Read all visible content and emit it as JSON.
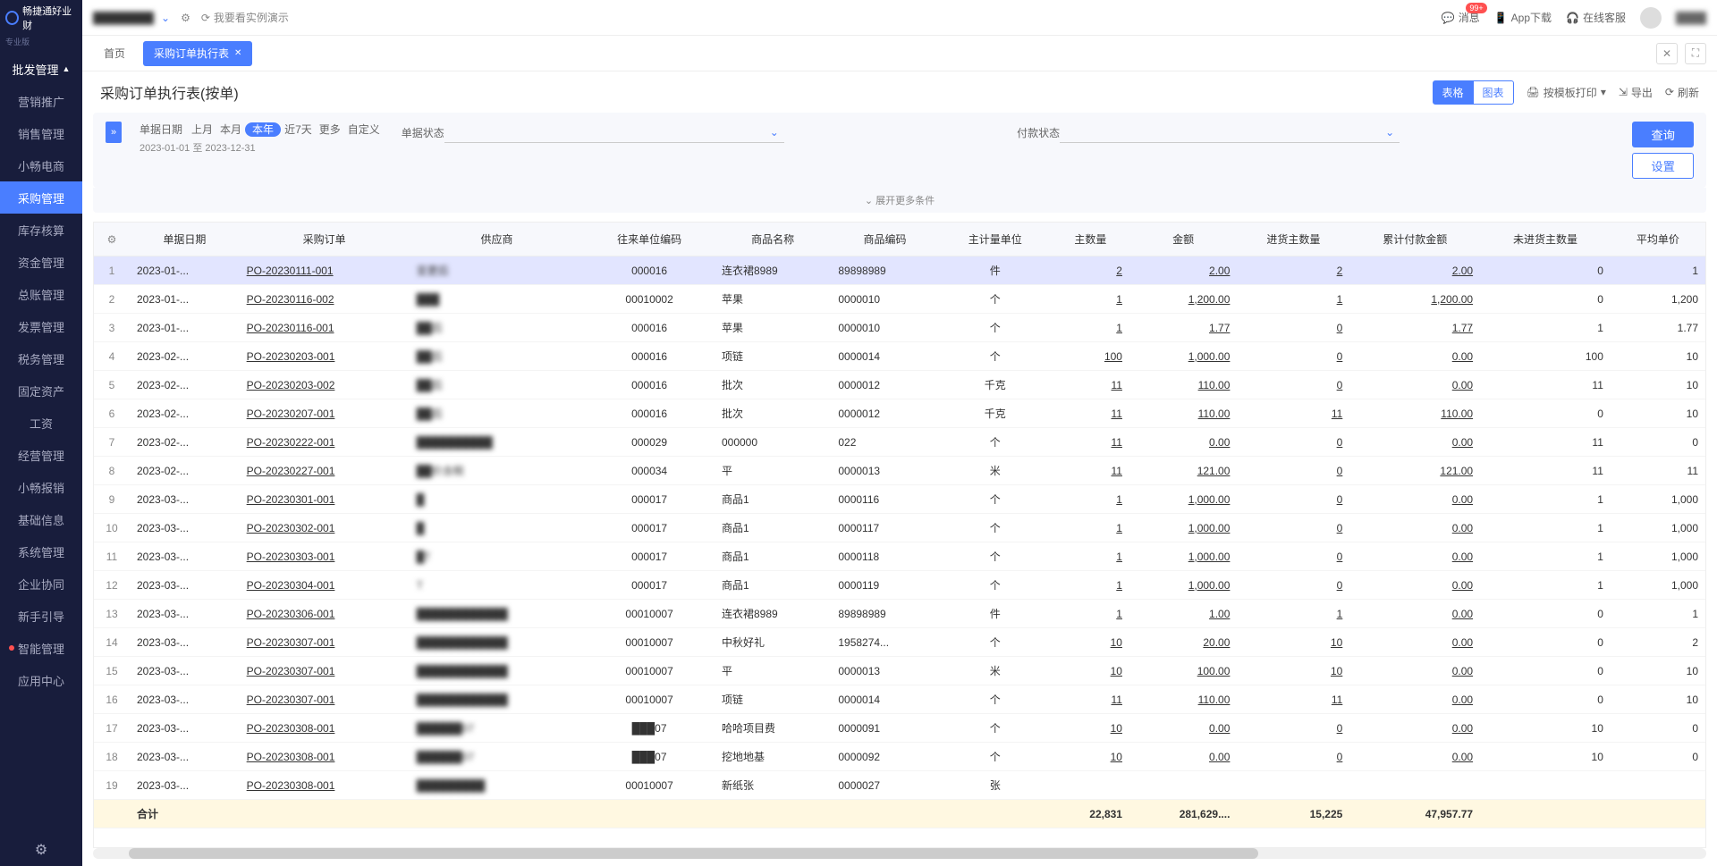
{
  "brand": {
    "name": "畅捷通好业财",
    "edition": "专业版"
  },
  "sidebar": [
    {
      "label": "批发管理",
      "expanded": true
    },
    {
      "label": "营销推广"
    },
    {
      "label": "销售管理"
    },
    {
      "label": "小畅电商"
    },
    {
      "label": "采购管理",
      "active": true
    },
    {
      "label": "库存核算"
    },
    {
      "label": "资金管理"
    },
    {
      "label": "总账管理"
    },
    {
      "label": "发票管理"
    },
    {
      "label": "税务管理"
    },
    {
      "label": "固定资产"
    },
    {
      "label": "工资"
    },
    {
      "label": "经营管理"
    },
    {
      "label": "小畅报销"
    },
    {
      "label": "基础信息"
    },
    {
      "label": "系统管理"
    },
    {
      "label": "企业协同"
    },
    {
      "label": "新手引导"
    },
    {
      "label": "智能管理",
      "dot": true
    },
    {
      "label": "应用中心"
    }
  ],
  "topbar": {
    "org": "████████",
    "demo": "我要看实例演示",
    "msg": "消息",
    "badge": "99+",
    "app": "App下载",
    "cs": "在线客服",
    "user": "████"
  },
  "tabs": [
    {
      "label": "首页"
    },
    {
      "label": "采购订单执行表",
      "active": true,
      "closable": true
    }
  ],
  "page": {
    "title": "采购订单执行表(按单)",
    "view": {
      "table": "表格",
      "chart": "图表"
    },
    "actions": {
      "print": "按模板打印",
      "export": "导出",
      "refresh": "刷新"
    }
  },
  "filters": {
    "dateLabel": "单据日期",
    "dateOpts": [
      "上月",
      "本月",
      "本年",
      "近7天",
      "更多",
      "自定义"
    ],
    "dateActive": "本年",
    "dateRange": "2023-01-01 至 2023-12-31",
    "statusLabel": "单据状态",
    "payLabel": "付款状态",
    "query": "查询",
    "setup": "设置",
    "expand": "展开更多条件"
  },
  "columns": [
    "",
    "单据日期",
    "采购订单",
    "供应商",
    "往来单位编码",
    "商品名称",
    "商品编码",
    "主计量单位",
    "主数量",
    "金额",
    "进货主数量",
    "累计付款金额",
    "未进货主数量",
    "平均单价"
  ],
  "rows": [
    {
      "i": 1,
      "date": "2023-01-...",
      "po": "PO-20230111-001",
      "sup": "变更后",
      "code": "000016",
      "pname": "连衣裙8989",
      "pcode": "89898989",
      "unit": "件",
      "qty": "2",
      "amt": "2.00",
      "inqty": "2",
      "paid": "2.00",
      "unqty": "0",
      "avg": "1",
      "sel": true
    },
    {
      "i": 2,
      "date": "2023-01-...",
      "po": "PO-20230116-002",
      "sup": "███",
      "code": "00010002",
      "pname": "苹果",
      "pcode": "0000010",
      "unit": "个",
      "qty": "1",
      "amt": "1,200.00",
      "inqty": "1",
      "paid": "1,200.00",
      "unqty": "0",
      "avg": "1,200"
    },
    {
      "i": 3,
      "date": "2023-01-...",
      "po": "PO-20230116-001",
      "sup": "██后",
      "code": "000016",
      "pname": "苹果",
      "pcode": "0000010",
      "unit": "个",
      "qty": "1",
      "amt": "1.77",
      "inqty": "0",
      "paid": "1.77",
      "unqty": "1",
      "avg": "1.77"
    },
    {
      "i": 4,
      "date": "2023-02-...",
      "po": "PO-20230203-001",
      "sup": "██后",
      "code": "000016",
      "pname": "项链",
      "pcode": "0000014",
      "unit": "个",
      "qty": "100",
      "amt": "1,000.00",
      "inqty": "0",
      "paid": "0.00",
      "unqty": "100",
      "avg": "10"
    },
    {
      "i": 5,
      "date": "2023-02-...",
      "po": "PO-20230203-002",
      "sup": "██后",
      "code": "000016",
      "pname": "批次",
      "pcode": "0000012",
      "unit": "千克",
      "qty": "11",
      "amt": "110.00",
      "inqty": "0",
      "paid": "0.00",
      "unqty": "11",
      "avg": "10"
    },
    {
      "i": 6,
      "date": "2023-02-...",
      "po": "PO-20230207-001",
      "sup": "██后",
      "code": "000016",
      "pname": "批次",
      "pcode": "0000012",
      "unit": "千克",
      "qty": "11",
      "amt": "110.00",
      "inqty": "11",
      "paid": "110.00",
      "unqty": "0",
      "avg": "10"
    },
    {
      "i": 7,
      "date": "2023-02-...",
      "po": "PO-20230222-001",
      "sup": "██████████",
      "code": "000029",
      "pname": "000000",
      "pcode": "022",
      "unit": "个",
      "qty": "11",
      "amt": "0.00",
      "inqty": "0",
      "paid": "0.00",
      "unqty": "11",
      "avg": "0"
    },
    {
      "i": 8,
      "date": "2023-02-...",
      "po": "PO-20230227-001",
      "sup": "██价含税",
      "code": "000034",
      "pname": "平",
      "pcode": "0000013",
      "unit": "米",
      "qty": "11",
      "amt": "121.00",
      "inqty": "0",
      "paid": "121.00",
      "unqty": "11",
      "avg": "11"
    },
    {
      "i": 9,
      "date": "2023-03-...",
      "po": "PO-20230301-001",
      "sup": "█",
      "code": "000017",
      "pname": "商品1",
      "pcode": "0000116",
      "unit": "个",
      "qty": "1",
      "amt": "1,000.00",
      "inqty": "0",
      "paid": "0.00",
      "unqty": "1",
      "avg": "1,000"
    },
    {
      "i": 10,
      "date": "2023-03-...",
      "po": "PO-20230302-001",
      "sup": "█",
      "code": "000017",
      "pname": "商品1",
      "pcode": "0000117",
      "unit": "个",
      "qty": "1",
      "amt": "1,000.00",
      "inqty": "0",
      "paid": "0.00",
      "unqty": "1",
      "avg": "1,000"
    },
    {
      "i": 11,
      "date": "2023-03-...",
      "po": "PO-20230303-001",
      "sup": "█T",
      "code": "000017",
      "pname": "商品1",
      "pcode": "0000118",
      "unit": "个",
      "qty": "1",
      "amt": "1,000.00",
      "inqty": "0",
      "paid": "0.00",
      "unqty": "1",
      "avg": "1,000"
    },
    {
      "i": 12,
      "date": "2023-03-...",
      "po": "PO-20230304-001",
      "sup": "T",
      "code": "000017",
      "pname": "商品1",
      "pcode": "0000119",
      "unit": "个",
      "qty": "1",
      "amt": "1,000.00",
      "inqty": "0",
      "paid": "0.00",
      "unqty": "1",
      "avg": "1,000"
    },
    {
      "i": 13,
      "date": "2023-03-...",
      "po": "PO-20230306-001",
      "sup": "████████████",
      "code": "00010007",
      "pname": "连衣裙8989",
      "pcode": "89898989",
      "unit": "件",
      "qty": "1",
      "amt": "1.00",
      "inqty": "1",
      "paid": "0.00",
      "unqty": "0",
      "avg": "1"
    },
    {
      "i": 14,
      "date": "2023-03-...",
      "po": "PO-20230307-001",
      "sup": "████████████",
      "code": "00010007",
      "pname": "中秋好礼",
      "pcode": "1958274...",
      "unit": "个",
      "qty": "10",
      "amt": "20.00",
      "inqty": "10",
      "paid": "0.00",
      "unqty": "0",
      "avg": "2"
    },
    {
      "i": 15,
      "date": "2023-03-...",
      "po": "PO-20230307-001",
      "sup": "████████████",
      "code": "00010007",
      "pname": "平",
      "pcode": "0000013",
      "unit": "米",
      "qty": "10",
      "amt": "100.00",
      "inqty": "10",
      "paid": "0.00",
      "unqty": "0",
      "avg": "10"
    },
    {
      "i": 16,
      "date": "2023-03-...",
      "po": "PO-20230307-001",
      "sup": "████████████",
      "code": "00010007",
      "pname": "项链",
      "pcode": "0000014",
      "unit": "个",
      "qty": "11",
      "amt": "110.00",
      "inqty": "11",
      "paid": "0.00",
      "unqty": "0",
      "avg": "10"
    },
    {
      "i": 17,
      "date": "2023-03-...",
      "po": "PO-20230308-001",
      "sup": "██████07",
      "code": "███07",
      "pname": "哈哈项目费",
      "pcode": "0000091",
      "unit": "个",
      "qty": "10",
      "amt": "0.00",
      "inqty": "0",
      "paid": "0.00",
      "unqty": "10",
      "avg": "0"
    },
    {
      "i": 18,
      "date": "2023-03-...",
      "po": "PO-20230308-001",
      "sup": "██████07",
      "code": "███07",
      "pname": "挖地地基",
      "pcode": "0000092",
      "unit": "个",
      "qty": "10",
      "amt": "0.00",
      "inqty": "0",
      "paid": "0.00",
      "unqty": "10",
      "avg": "0"
    },
    {
      "i": 19,
      "date": "2023-03-...",
      "po": "PO-20230308-001",
      "sup": "█████████",
      "code": "00010007",
      "pname": "新纸张",
      "pcode": "0000027",
      "unit": "张",
      "qty": "",
      "amt": "",
      "inqty": "",
      "paid": "",
      "unqty": "",
      "avg": ""
    }
  ],
  "total": {
    "label": "合计",
    "qty": "22,831",
    "amt": "281,629....",
    "inqty": "15,225",
    "paid": "47,957.77"
  }
}
